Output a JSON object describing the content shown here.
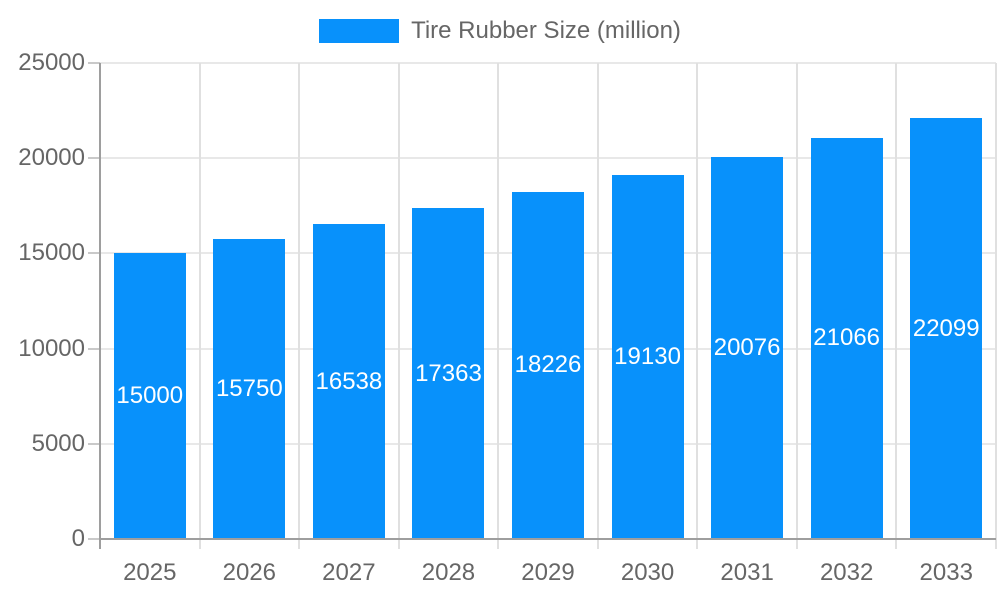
{
  "chart_data": {
    "type": "bar",
    "title": "",
    "categories": [
      "2025",
      "2026",
      "2027",
      "2028",
      "2029",
      "2030",
      "2031",
      "2032",
      "2033"
    ],
    "series": [
      {
        "name": "Tire Rubber Size (million)",
        "values": [
          15000,
          15750,
          16538,
          17363,
          18226,
          19130,
          20076,
          21066,
          22099
        ]
      }
    ],
    "value_labels": "inside bars, white, centered",
    "xlabel": "",
    "ylabel": "",
    "ylim": [
      0,
      25000
    ],
    "yticks": [
      0,
      5000,
      10000,
      15000,
      20000,
      25000
    ],
    "grid": "on",
    "legend_position": "top-center",
    "colors": {
      "bar": "#0891fb",
      "axis_line": "#9e9e9e",
      "grid_horizontal": "#e8e8e8",
      "grid_vertical": "#e0e0e0",
      "y_tick_mark": "#c9c9c9",
      "tick_text": "#666666",
      "legend_text": "#666666",
      "bar_value_text": "#ffffff",
      "background": "#ffffff"
    }
  }
}
